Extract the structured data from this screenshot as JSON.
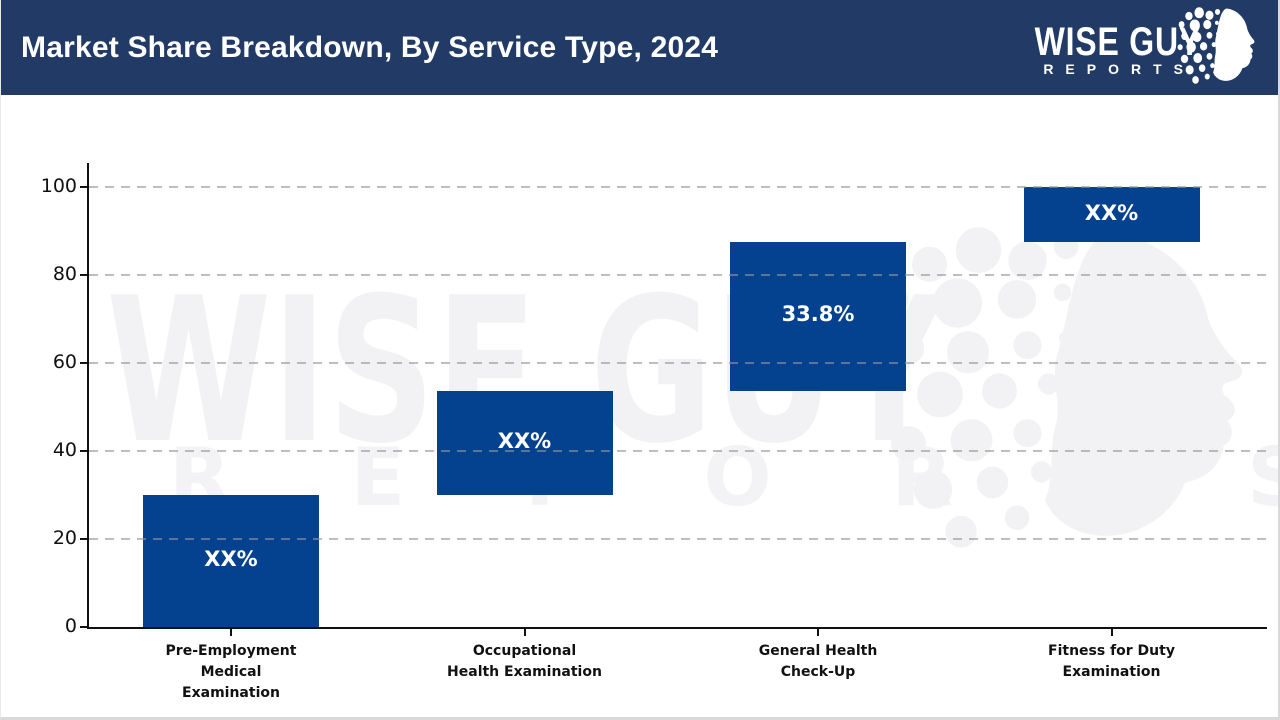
{
  "header": {
    "title": "Market Share Breakdown, By Service Type, 2024",
    "logo": {
      "line1": "WISE GUY",
      "line2": "REPORTS"
    }
  },
  "watermark": {
    "line1": "WISE GUY",
    "line2": "R E P O R T S"
  },
  "colors": {
    "header_bg": "#213A66",
    "bar_blue": "#04418F",
    "axis": "#111111",
    "gridline": "#C9C9C9",
    "watermark": "#F2F2F4",
    "bar_label_text": "#FFFFFF"
  },
  "chart_data": {
    "type": "waterfall",
    "title": "Market Share Breakdown, By Service Type, 2024",
    "categories": [
      "Pre-Employment\nMedical\nExamination",
      "Occupational\nHealth Examination",
      "General Health\nCheck-Up",
      "Fitness for Duty\nExamination"
    ],
    "bar_labels": [
      "XX%",
      "XX%",
      "33.8%",
      "XX%"
    ],
    "values_est": [
      30,
      23.7,
      33.8,
      12.5
    ],
    "cumulative_start": [
      0,
      30,
      53.7,
      87.5
    ],
    "cumulative_end": [
      30,
      53.7,
      87.5,
      100
    ],
    "labeled_value": {
      "category": "General Health Check-Up",
      "value": 33.8
    },
    "yticks": [
      0,
      20,
      40,
      60,
      80,
      100
    ],
    "ylim": [
      0,
      105
    ],
    "xlabel": "",
    "ylabel": "",
    "grid": "horizontal-dashed",
    "legend": null,
    "bar_color": "#04418F"
  }
}
